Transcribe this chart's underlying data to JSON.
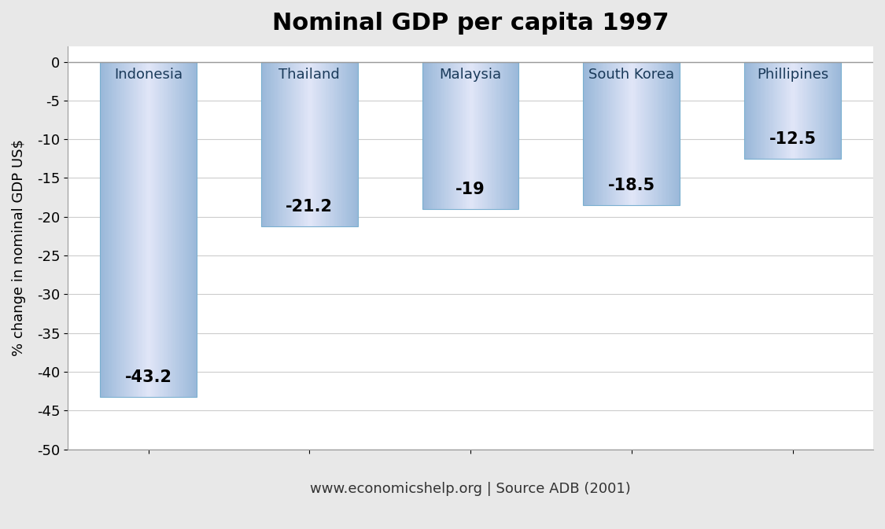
{
  "title": "Nominal GDP per capita 1997",
  "categories": [
    "Indonesia",
    "Thailand",
    "Malaysia",
    "South Korea",
    "Phillipines"
  ],
  "values": [
    -43.2,
    -21.2,
    -19.0,
    -18.5,
    -12.5
  ],
  "value_labels": [
    "-43.2",
    "-21.2",
    "-19",
    "-18.5",
    "-12.5"
  ],
  "bar_color_light": "#a8cce8",
  "bar_color_mid": "#7ab8df",
  "bar_color_dark": "#5a9ec8",
  "ylabel": "% change in nominal GDP US$",
  "ylim": [
    -50,
    2
  ],
  "yticks": [
    0,
    -5,
    -10,
    -15,
    -20,
    -25,
    -30,
    -35,
    -40,
    -45,
    -50
  ],
  "ytick_labels": [
    "0",
    "-5",
    "-10",
    "-15",
    "-20",
    "-25",
    "-30",
    "-35",
    "-40",
    "-45",
    "-50"
  ],
  "footnote": "www.economicshelp.org | Source ADB (2001)",
  "title_fontsize": 22,
  "label_fontsize": 13,
  "tick_fontsize": 13,
  "value_fontsize": 15,
  "cat_fontsize": 13,
  "footnote_fontsize": 13,
  "background_color": "#e8e8e8",
  "plot_background_color": "#ffffff",
  "bar_width": 0.6,
  "xlim": [
    -0.5,
    4.5
  ]
}
